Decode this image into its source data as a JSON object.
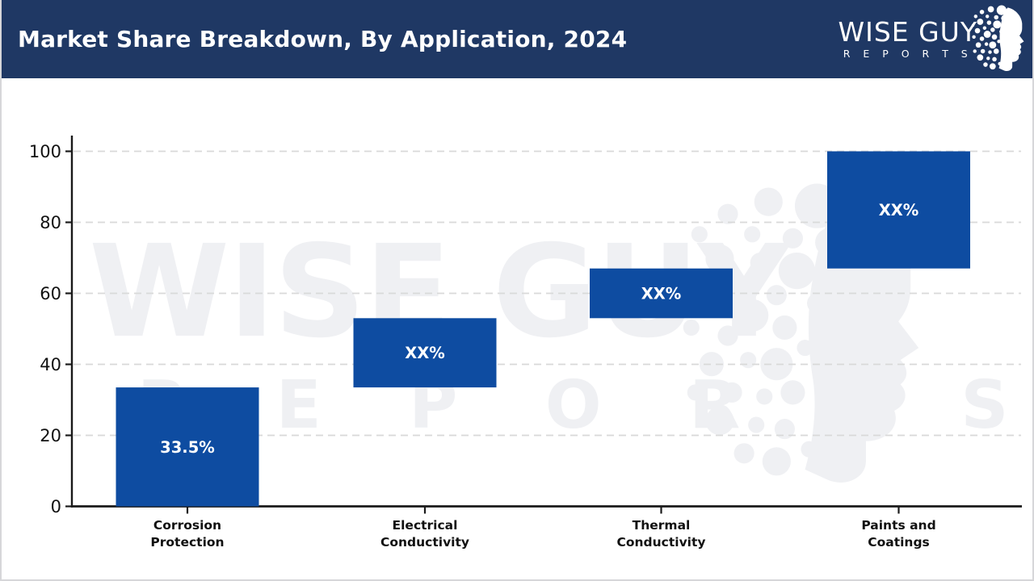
{
  "header": {
    "title": "Market Share Breakdown, By Application, 2024",
    "logo": {
      "name_line": "WISE GUY",
      "sub_line": "R E P O R T S"
    }
  },
  "watermark": {
    "name_line": "WISE GUY",
    "sub_line": "R E P O R T S"
  },
  "colors": {
    "header_bg": "#1f3864",
    "bar_fill": "#0e4ca1",
    "bar_label": "#ffffff",
    "grid_line": "#d9d9d9",
    "axis_line": "#1a1a1a",
    "tick_text": "#111111",
    "category_text": "#111111",
    "watermark": "#eff0f3",
    "page_border": "#d6d6d9"
  },
  "chart_data": {
    "type": "bar",
    "subtype": "waterfall",
    "title": "Market Share Breakdown, By Application, 2024",
    "categories": [
      "Corrosion Protection",
      "Electrical Conductivity",
      "Thermal Conductivity",
      "Paints and Coatings"
    ],
    "category_label_lines": [
      [
        "Corrosion",
        "Protection"
      ],
      [
        "Electrical",
        "Conductivity"
      ],
      [
        "Thermal",
        "Conductivity"
      ],
      [
        "Paints and",
        "Coatings"
      ]
    ],
    "segments": [
      {
        "category": "Corrosion Protection",
        "start": 0,
        "end": 33.5,
        "label": "33.5%"
      },
      {
        "category": "Electrical Conductivity",
        "start": 33.5,
        "end": 53,
        "label": "XX%"
      },
      {
        "category": "Thermal Conductivity",
        "start": 53,
        "end": 67,
        "label": "XX%"
      },
      {
        "category": "Paints and Coatings",
        "start": 67,
        "end": 100,
        "label": "XX%"
      }
    ],
    "xlabel": "",
    "ylabel": "",
    "ylim": [
      0,
      100
    ],
    "yticks": [
      0,
      20,
      40,
      60,
      80,
      100
    ],
    "grid": "horizontal-dashed",
    "legend": "none",
    "units": "percent market share"
  }
}
